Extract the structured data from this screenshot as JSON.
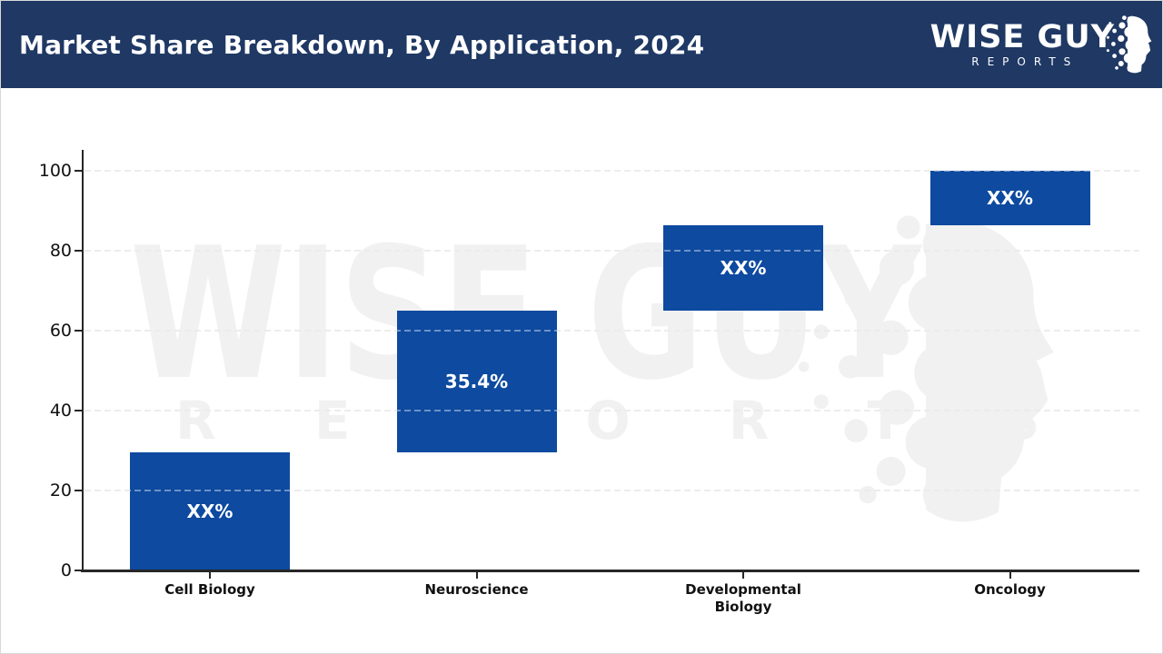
{
  "header": {
    "title": "Market Share Breakdown, By Application, 2024",
    "logo_line1": "WISE GUY",
    "logo_line2": "REPORTS"
  },
  "watermark": {
    "line1": "WISE GUY",
    "line2": "R E P O R T S"
  },
  "colors": {
    "header_bg": "#1f3864",
    "bar": "#0d4aa0",
    "bar_label_text": "#ffffff",
    "watermark": "#f1f1f2",
    "title_text": "#ffffff"
  },
  "chart_data": {
    "type": "bar",
    "subtype": "waterfall",
    "title": "Market Share Breakdown, By Application, 2024",
    "xlabel": "",
    "ylabel": "",
    "ylim": [
      0,
      105
    ],
    "yticks": [
      0,
      20,
      40,
      60,
      80,
      100
    ],
    "grid": "horizontal dashed",
    "legend": "none",
    "categories": [
      "Cell Biology",
      "Neuroscience",
      "Developmental Biology",
      "Oncology"
    ],
    "segments": [
      {
        "category": "Cell Biology",
        "start": 0,
        "end": 29.5,
        "value": 29.5,
        "label": "XX%"
      },
      {
        "category": "Neuroscience",
        "start": 29.5,
        "end": 64.9,
        "value": 35.4,
        "label": "35.4%"
      },
      {
        "category": "Developmental Biology",
        "start": 64.9,
        "end": 86.4,
        "value": 21.5,
        "label": "XX%"
      },
      {
        "category": "Oncology",
        "start": 86.4,
        "end": 100,
        "value": 13.6,
        "label": "XX%"
      }
    ]
  }
}
